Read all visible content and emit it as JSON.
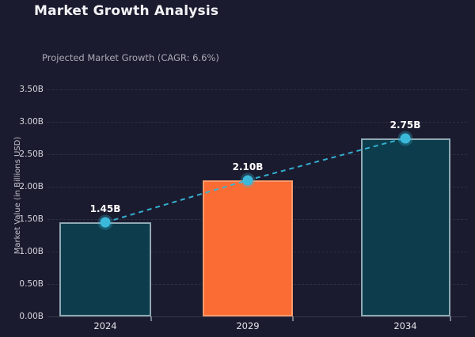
{
  "header": {
    "title": "Market Growth Analysis"
  },
  "chart_data": {
    "type": "bar",
    "title": "Projected Market Growth (CAGR: 6.6%)",
    "categories": [
      "2024",
      "2029",
      "2034"
    ],
    "values": [
      1.45,
      2.1,
      2.75
    ],
    "value_labels": [
      "1.45B",
      "2.10B",
      "2.75B"
    ],
    "xlabel": "",
    "ylabel": "Market Value (in Billions USD)",
    "ylim": [
      0,
      3.5
    ],
    "ytick_step": 0.5,
    "ytick_labels": [
      "0.00B",
      "0.50B",
      "1.00B",
      "1.50B",
      "2.00B",
      "2.50B",
      "3.00B",
      "3.50B"
    ],
    "grid": true,
    "legend": "none",
    "overlay_line": {
      "type": "line",
      "style": "dashed",
      "values": [
        1.45,
        2.1,
        2.75
      ],
      "marker": "circle"
    },
    "colors": {
      "background": "#1b1b2f",
      "bar_fills": [
        "#0d3d4d",
        "#fb6c35",
        "#0d3d4d"
      ],
      "bar_borders": [
        "#8fa9b4",
        "#fc9a6b",
        "#8fa9b4"
      ],
      "trend_line": "#36b6d8",
      "marker_fill": "#3bb9da",
      "title_text": "#f2f2f6",
      "subtitle_text": "#a9a9b5",
      "axis_text": "#d6d6de"
    }
  }
}
